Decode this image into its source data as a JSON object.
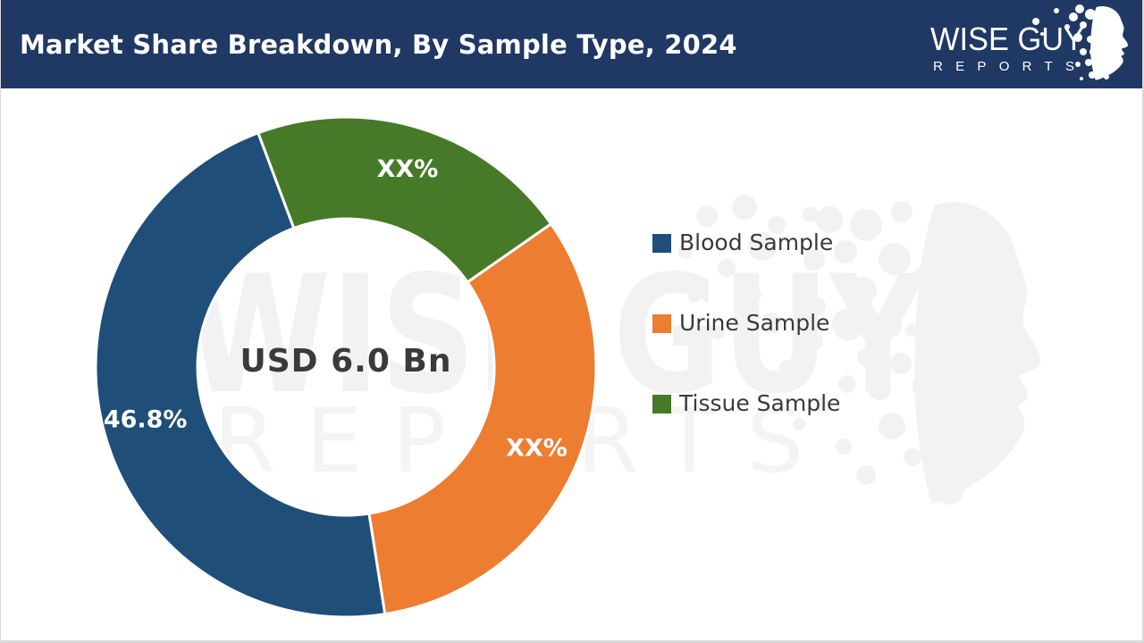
{
  "header": {
    "title": "Market Share Breakdown, By Sample Type, 2024",
    "bg_color": "#1F3864",
    "logo": {
      "line1": "WISE GUY",
      "line2": "REPORTS"
    }
  },
  "watermark": {
    "line1": "WISE GUY",
    "line2": "REPORTS"
  },
  "chart_data": {
    "type": "pie",
    "subtype": "donut",
    "title": "Market Share Breakdown, By Sample Type, 2024",
    "center_label": "USD 6.0 Bn",
    "slices": [
      {
        "name": "Blood Sample",
        "value": 46.8,
        "label": "46.8%",
        "color": "#1F4E79"
      },
      {
        "name": "Urine Sample",
        "value": 32.2,
        "label": "XX%",
        "color": "#ED7D31"
      },
      {
        "name": "Tissue Sample",
        "value": 21.0,
        "label": "XX%",
        "color": "#477A28"
      }
    ],
    "start_angle_deg": 171,
    "clockwise_draw_order": [
      0,
      2,
      1
    ],
    "legend_position": "right",
    "label_color": "#FFFFFF"
  },
  "page": {
    "background": "#FFFFFF",
    "border_color": "#D9D9D9",
    "watermark_color": "#F2F2F3"
  }
}
